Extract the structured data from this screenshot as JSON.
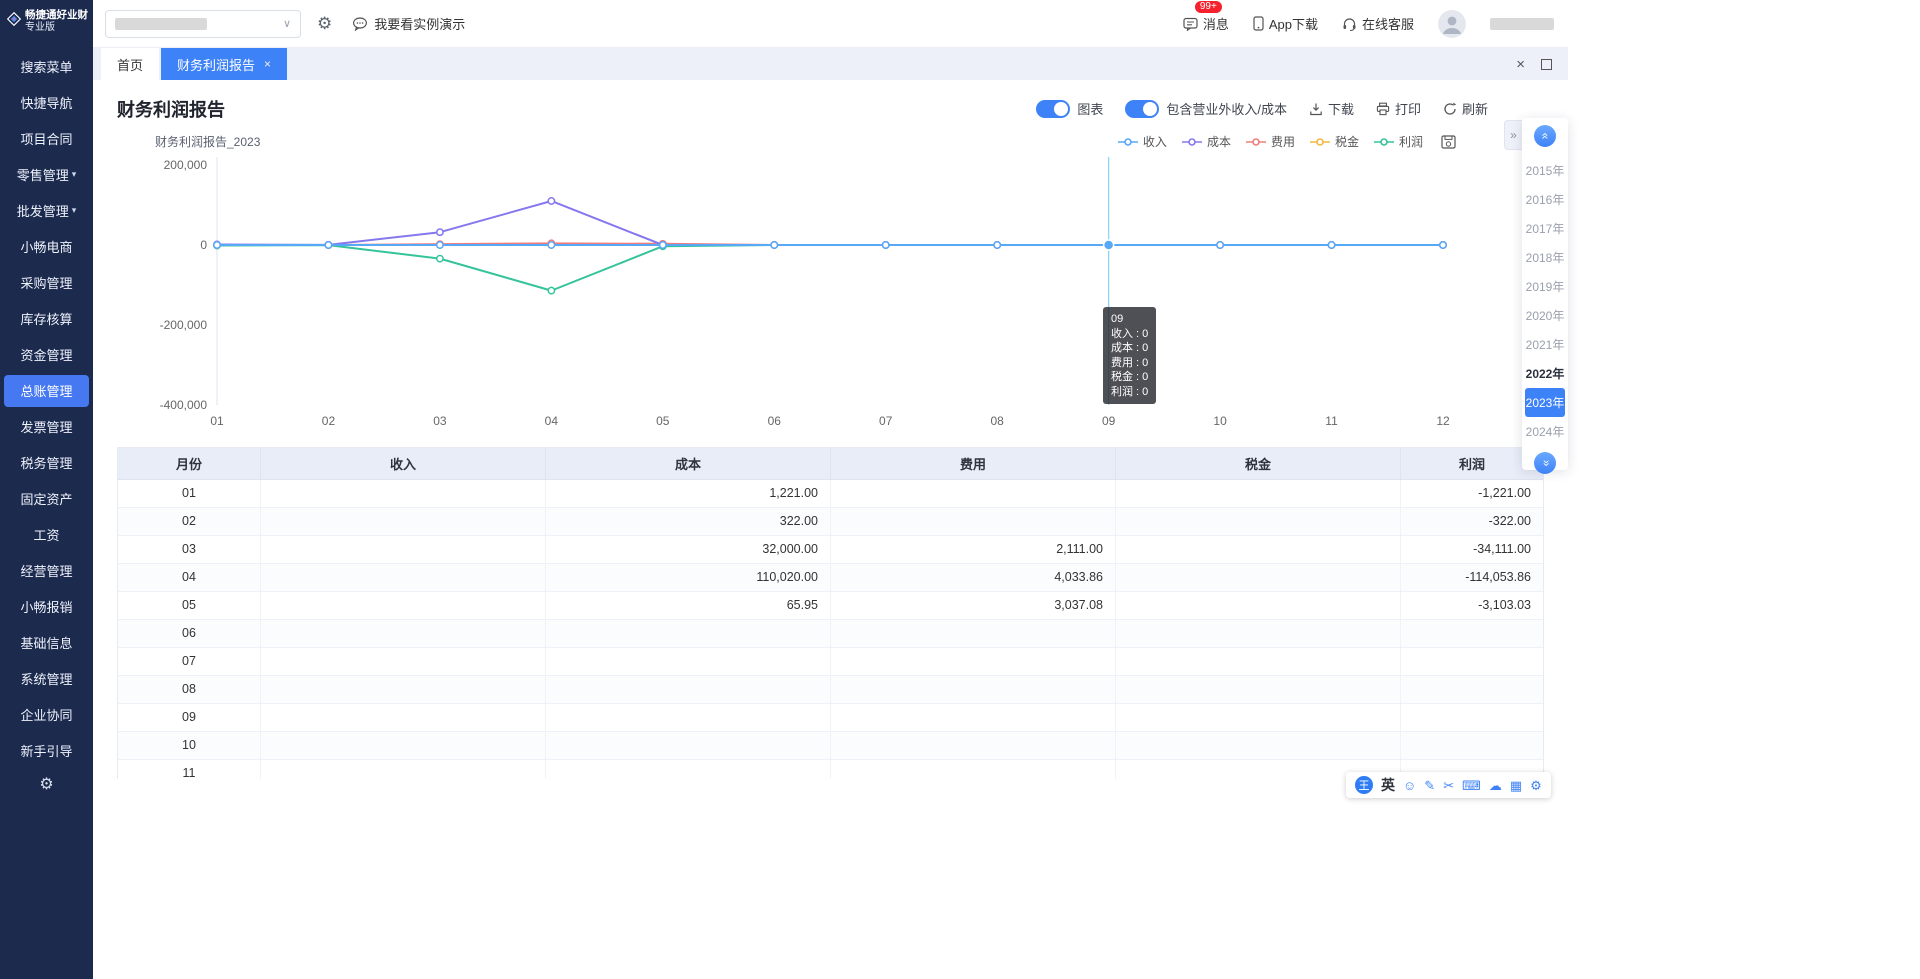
{
  "brand": {
    "line1": "畅捷通好业财",
    "line2": "专业版"
  },
  "icons": {
    "gear": "⚙",
    "chevron_down": "∨",
    "caret_down": "▾",
    "close": "×",
    "collapse_right": "»",
    "double_chevron": "«",
    "smiley": "☺",
    "pencil": "✎",
    "scissors": "✂",
    "keyboard": "⌨",
    "cloud": "☁",
    "grid": "▦"
  },
  "topbar": {
    "demo_text": "我要看实例演示",
    "messages": "消息",
    "badge": "99+",
    "app_download": "App下载",
    "online_support": "在线客服"
  },
  "tabs": [
    {
      "label": "首页",
      "active": false,
      "closable": false
    },
    {
      "label": "财务利润报告",
      "active": true,
      "closable": true
    }
  ],
  "sidebar": {
    "items": [
      {
        "label": "搜索菜单"
      },
      {
        "label": "快捷导航"
      },
      {
        "label": "项目合同"
      },
      {
        "label": "零售管理",
        "caret": true
      },
      {
        "label": "批发管理",
        "caret": true
      },
      {
        "label": "小畅电商"
      },
      {
        "label": "采购管理"
      },
      {
        "label": "库存核算"
      },
      {
        "label": "资金管理"
      },
      {
        "label": "总账管理",
        "active": true
      },
      {
        "label": "发票管理"
      },
      {
        "label": "税务管理"
      },
      {
        "label": "固定资产"
      },
      {
        "label": "工资"
      },
      {
        "label": "经营管理"
      },
      {
        "label": "小畅报销"
      },
      {
        "label": "基础信息"
      },
      {
        "label": "系统管理"
      },
      {
        "label": "企业协同"
      },
      {
        "label": "新手引导"
      }
    ]
  },
  "page": {
    "title": "财务利润报告",
    "chart_toggle": "图表",
    "include_toggle": "包含营业外收入/成本",
    "download": "下载",
    "print": "打印",
    "refresh": "刷新"
  },
  "chart_data": {
    "type": "line",
    "title": "财务利润报告_2023",
    "x": [
      "01",
      "02",
      "03",
      "04",
      "05",
      "06",
      "07",
      "08",
      "09",
      "10",
      "11",
      "12"
    ],
    "ylim": [
      -400000,
      200000
    ],
    "yticks": [
      {
        "label": "200,000",
        "value": 200000
      },
      {
        "label": "0",
        "value": 0
      },
      {
        "label": "-200,000",
        "value": -200000
      },
      {
        "label": "-400,000",
        "value": -400000
      }
    ],
    "legend_position": "top-right",
    "grid": false,
    "highlight_index": 8,
    "series": [
      {
        "name": "收入",
        "color": "#57a8f7",
        "values": [
          0,
          0,
          0,
          0,
          0,
          0,
          0,
          0,
          0,
          0,
          0,
          0
        ]
      },
      {
        "name": "成本",
        "color": "#8577ee",
        "values": [
          1221,
          322,
          32000,
          110020,
          65.95,
          0,
          0,
          0,
          0,
          0,
          0,
          0
        ]
      },
      {
        "name": "费用",
        "color": "#ef7d7d",
        "values": [
          0,
          0,
          2111,
          4033.86,
          3037.08,
          0,
          0,
          0,
          0,
          0,
          0,
          0
        ]
      },
      {
        "name": "税金",
        "color": "#f3b93f",
        "values": [
          0,
          0,
          0,
          0,
          0,
          0,
          0,
          0,
          0,
          0,
          0,
          0
        ]
      },
      {
        "name": "利润",
        "color": "#34c39a",
        "values": [
          -1221,
          -322,
          -34111,
          -114053.86,
          -3103.03,
          0,
          0,
          0,
          0,
          0,
          0,
          0
        ]
      }
    ],
    "tooltip": {
      "title": "09",
      "rows": [
        "收入 : 0",
        "成本 : 0",
        "费用 : 0",
        "税金 : 0",
        "利润 : 0"
      ]
    }
  },
  "years": {
    "items": [
      "2015年",
      "2016年",
      "2017年",
      "2018年",
      "2019年",
      "2020年",
      "2021年",
      "2022年",
      "2023年",
      "2024年"
    ],
    "selected": "2023年",
    "emphasis": "2022年"
  },
  "table": {
    "headers": [
      "月份",
      "收入",
      "成本",
      "费用",
      "税金",
      "利润"
    ],
    "rows": [
      [
        "01",
        "",
        "1,221.00",
        "",
        "",
        "-1,221.00"
      ],
      [
        "02",
        "",
        "322.00",
        "",
        "",
        "-322.00"
      ],
      [
        "03",
        "",
        "32,000.00",
        "2,111.00",
        "",
        "-34,111.00"
      ],
      [
        "04",
        "",
        "110,020.00",
        "4,033.86",
        "",
        "-114,053.86"
      ],
      [
        "05",
        "",
        "65.95",
        "3,037.08",
        "",
        "-3,103.03"
      ],
      [
        "06",
        "",
        "",
        "",
        "",
        ""
      ],
      [
        "07",
        "",
        "",
        "",
        "",
        ""
      ],
      [
        "08",
        "",
        "",
        "",
        "",
        ""
      ],
      [
        "09",
        "",
        "",
        "",
        "",
        ""
      ],
      [
        "10",
        "",
        "",
        "",
        "",
        ""
      ],
      [
        "11",
        "",
        "",
        "",
        "",
        ""
      ]
    ]
  },
  "ime": {
    "logo": "王",
    "lang": "英"
  }
}
